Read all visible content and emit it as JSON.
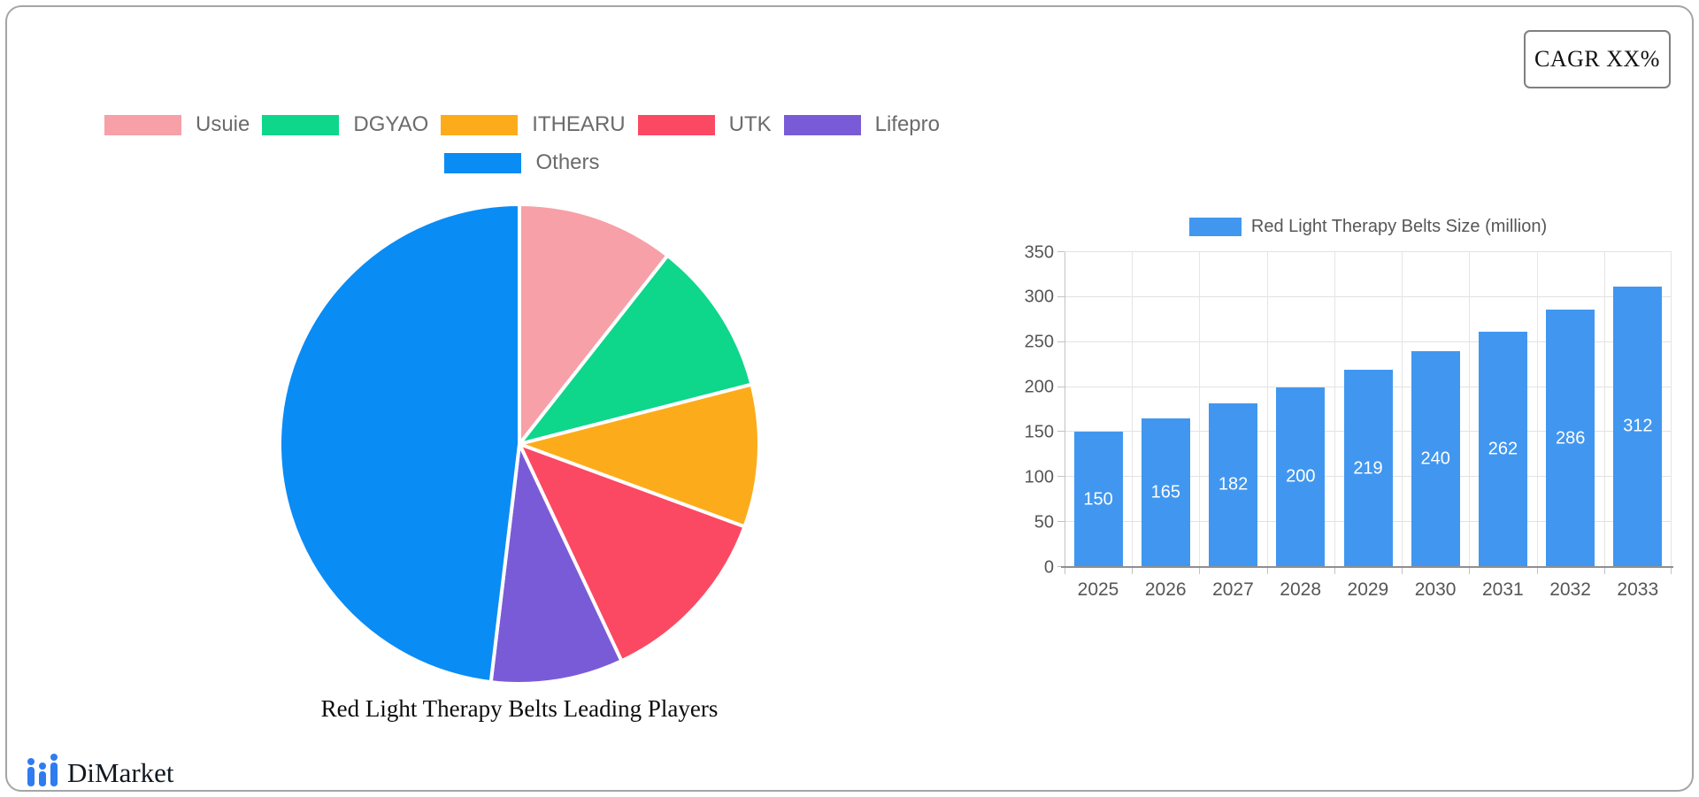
{
  "page": {
    "cagr_label": "CAGR XX%"
  },
  "branding": {
    "logo_text": "DiMarket",
    "logo_icon": "bar-chart-icon",
    "logo_color": "#2e7cf0",
    "text_color": "#101820"
  },
  "chart_data": [
    {
      "type": "pie",
      "title": "Red Light Therapy Belts Leading Players",
      "labels": [
        "Usuie",
        "DGYAO",
        "ITHEARU",
        "UTK",
        "Lifepro",
        "Others"
      ],
      "values_percent": [
        10.6,
        10.4,
        9.6,
        12.4,
        8.9,
        48.1
      ],
      "colors": [
        "#f7a0a7",
        "#0ed68b",
        "#fcac1b",
        "#fb4963",
        "#7a5bd7",
        "#0a8cf5"
      ],
      "legend_position": "top",
      "legend_text_color": "#6b6b6b",
      "slice_border_color": "#ffffff"
    },
    {
      "type": "bar",
      "legend": "Red Light Therapy Belts Size (million)",
      "categories": [
        "2025",
        "2026",
        "2027",
        "2028",
        "2029",
        "2030",
        "2031",
        "2032",
        "2033"
      ],
      "values": [
        150,
        165,
        182,
        200,
        219,
        240,
        262,
        286,
        312
      ],
      "bar_color": "#4197ef",
      "value_label_color": "#ffffff",
      "xlabel": "",
      "ylabel": "",
      "ylim": [
        0,
        350
      ],
      "yticks": [
        0,
        50,
        100,
        150,
        200,
        250,
        300,
        350
      ],
      "grid": true,
      "axis_text_color": "#565656",
      "legend_position": "top"
    }
  ]
}
